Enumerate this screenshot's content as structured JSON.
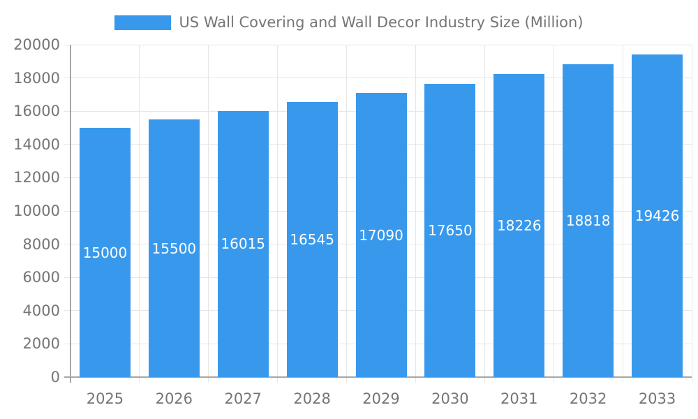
{
  "chart_data": {
    "type": "bar",
    "title": "US Wall Covering and Wall Decor Industry Size (Million)",
    "categories": [
      "2025",
      "2026",
      "2027",
      "2028",
      "2029",
      "2030",
      "2031",
      "2032",
      "2033"
    ],
    "values": [
      15000,
      15500,
      16015,
      16545,
      17090,
      17650,
      18226,
      18818,
      19426
    ],
    "xlabel": "",
    "ylabel": "",
    "ylim": [
      0,
      20000
    ],
    "yticks": [
      0,
      2000,
      4000,
      6000,
      8000,
      10000,
      12000,
      14000,
      16000,
      18000,
      20000
    ],
    "grid": true,
    "legend_position": "top",
    "colors": {
      "bar": "#3899EC",
      "axis": "#a6a6a6",
      "gridline": "#e6e6e6",
      "tick_text": "#757575",
      "value_label": "#ffffff",
      "background": "#ffffff"
    }
  }
}
